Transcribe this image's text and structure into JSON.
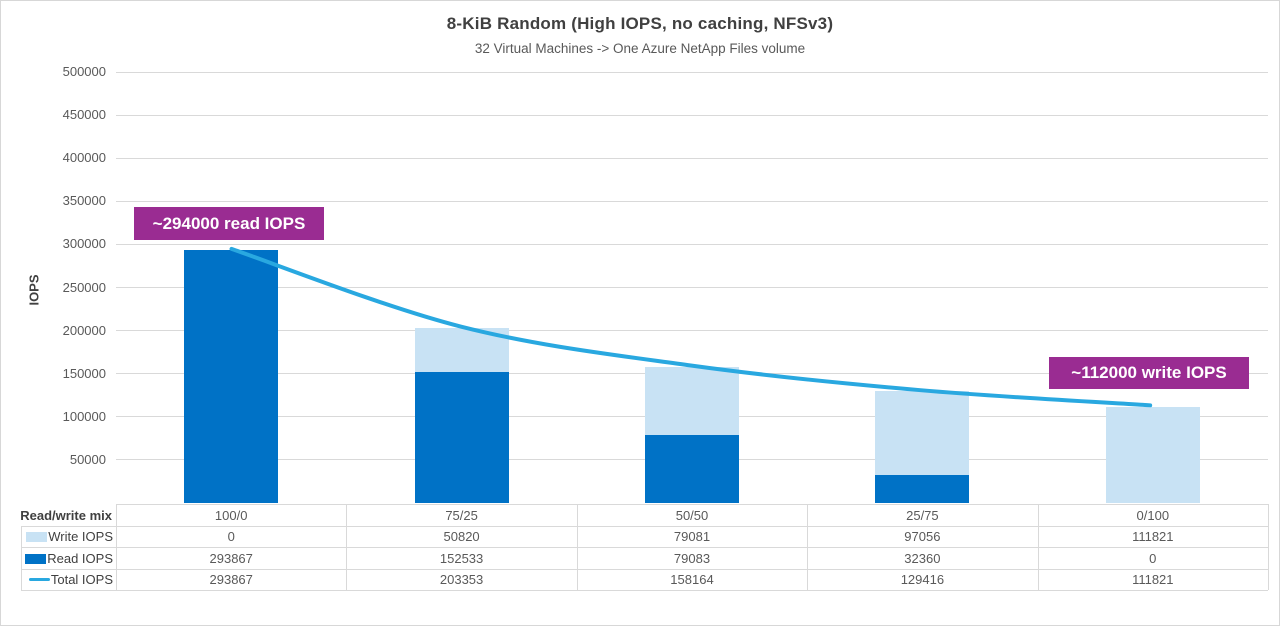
{
  "chart_data": {
    "type": "bar",
    "combo": "stacked-bar-with-smoothed-line",
    "title": "8-KiB Random (High IOPS, no caching, NFSv3)",
    "subtitle": "32 Virtual Machines -> One Azure NetApp Files volume",
    "xlabel": "Read/write mix",
    "ylabel": "IOPS",
    "ylim": [
      0,
      500000
    ],
    "ytick_interval": 50000,
    "grid": true,
    "legend_position": "data-table-left",
    "categories": [
      "100/0",
      "75/25",
      "50/50",
      "25/75",
      "0/100"
    ],
    "series": [
      {
        "name": "Write IOPS",
        "type": "bar",
        "stack_index": 1,
        "color": "#C8E2F4",
        "values": [
          0,
          50820,
          79081,
          97056,
          111821
        ]
      },
      {
        "name": "Read IOPS",
        "type": "bar",
        "stack_index": 0,
        "color": "#0072C6",
        "values": [
          293867,
          152533,
          79083,
          32360,
          0
        ]
      },
      {
        "name": "Total IOPS",
        "type": "line",
        "color": "#29A8E0",
        "values": [
          293867,
          203353,
          158164,
          129416,
          111821
        ]
      }
    ],
    "annotations": [
      {
        "text": "~294000 read IOPS",
        "color": "#9A2C92"
      },
      {
        "text": "~112000 write IOPS",
        "color": "#9A2C92"
      }
    ],
    "gridline_color": "#D9D9D9",
    "title_color": "#404040",
    "tick_color": "#595959"
  }
}
